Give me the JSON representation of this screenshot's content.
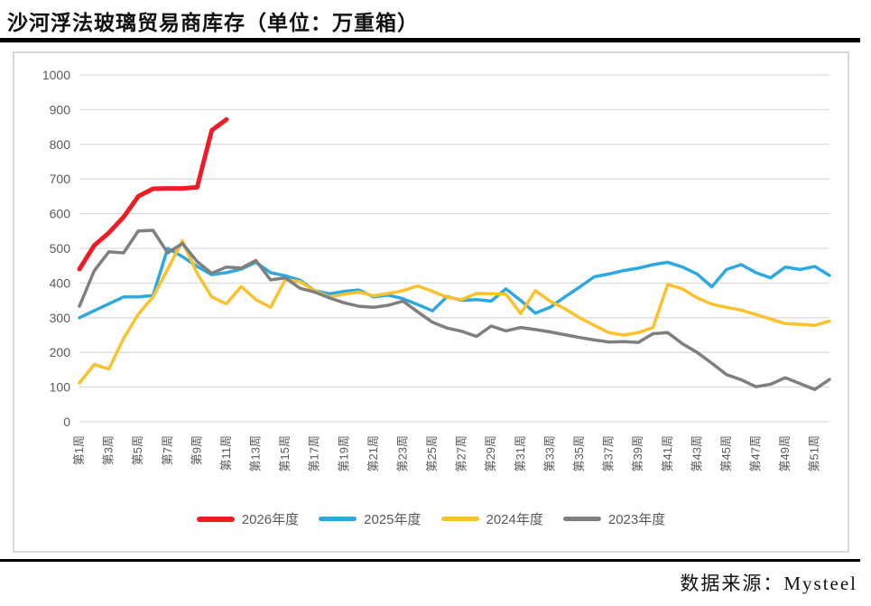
{
  "page": {
    "title": "沙河浮法玻璃贸易商库存（单位：万重箱）",
    "source_note": "数据来源：Mysteel"
  },
  "colors": {
    "red_2026": "#ee1c25",
    "blue_2025": "#2ea8e0",
    "yellow_2024": "#fcc12c",
    "gray_2023": "#7f7f7f",
    "axis_text": "#595959",
    "gridline": "#dcdcdc",
    "box_border": "#d9d9d9",
    "rule": "#000000"
  },
  "chart_data": {
    "type": "line",
    "title": "沙河浮法玻璃贸易商库存（单位：万重箱）",
    "unit": "万重箱",
    "grid": true,
    "legend_position": "bottom",
    "y_axis": {
      "min": 0,
      "max": 1000,
      "step": 100,
      "ticks": [
        0,
        100,
        200,
        300,
        400,
        500,
        600,
        700,
        800,
        900,
        1000
      ]
    },
    "x_axis": {
      "range": [
        1,
        52
      ],
      "tick_weeks": [
        1,
        3,
        5,
        7,
        9,
        11,
        13,
        15,
        17,
        19,
        21,
        23,
        25,
        27,
        29,
        31,
        33,
        35,
        37,
        39,
        41,
        43,
        45,
        47,
        49,
        51
      ],
      "tick_labels": [
        "第1周",
        "第3周",
        "第5周",
        "第7周",
        "第9周",
        "第11周",
        "第13周",
        "第15周",
        "第17周",
        "第19周",
        "第21周",
        "第23周",
        "第25周",
        "第27周",
        "第29周",
        "第31周",
        "第33周",
        "第35周",
        "第37周",
        "第39周",
        "第41周",
        "第43周",
        "第45周",
        "第47周",
        "第49周",
        "第51周"
      ]
    },
    "series": [
      {
        "name": "2026年度",
        "color": "#ee1c25",
        "width": 5,
        "start_week": 1,
        "values": [
          440,
          508,
          545,
          590,
          650,
          672,
          673,
          673,
          676,
          840,
          872
        ]
      },
      {
        "name": "2025年度",
        "color": "#2ea8e0",
        "width": 3.5,
        "start_week": 1,
        "values": [
          300,
          320,
          340,
          360,
          360,
          364,
          500,
          476,
          448,
          424,
          430,
          440,
          460,
          430,
          421,
          408,
          378,
          369,
          376,
          380,
          360,
          365,
          355,
          338,
          320,
          361,
          350,
          352,
          348,
          383,
          350,
          313,
          330,
          360,
          388,
          418,
          426,
          436,
          443,
          453,
          460,
          446,
          426,
          389,
          439,
          453,
          430,
          415,
          446,
          439,
          448,
          422
        ]
      },
      {
        "name": "2024年度",
        "color": "#fcc12c",
        "width": 3.5,
        "start_week": 1,
        "values": [
          112,
          165,
          152,
          240,
          310,
          360,
          440,
          522,
          428,
          360,
          340,
          390,
          352,
          330,
          410,
          404,
          378,
          360,
          368,
          374,
          363,
          370,
          378,
          392,
          376,
          359,
          352,
          370,
          369,
          368,
          312,
          378,
          348,
          326,
          300,
          278,
          257,
          250,
          257,
          272,
          396,
          383,
          357,
          339,
          330,
          322,
          309,
          296,
          283,
          281,
          278,
          290
        ]
      },
      {
        "name": "2023年度",
        "color": "#7f7f7f",
        "width": 3.5,
        "start_week": 1,
        "values": [
          333,
          435,
          490,
          487,
          550,
          552,
          487,
          514,
          462,
          428,
          446,
          443,
          465,
          409,
          415,
          385,
          374,
          357,
          343,
          333,
          330,
          336,
          348,
          317,
          287,
          270,
          261,
          246,
          276,
          262,
          272,
          266,
          259,
          251,
          243,
          236,
          230,
          231,
          229,
          254,
          257,
          225,
          200,
          169,
          136,
          121,
          101,
          108,
          127,
          110,
          93,
          122
        ]
      }
    ]
  }
}
